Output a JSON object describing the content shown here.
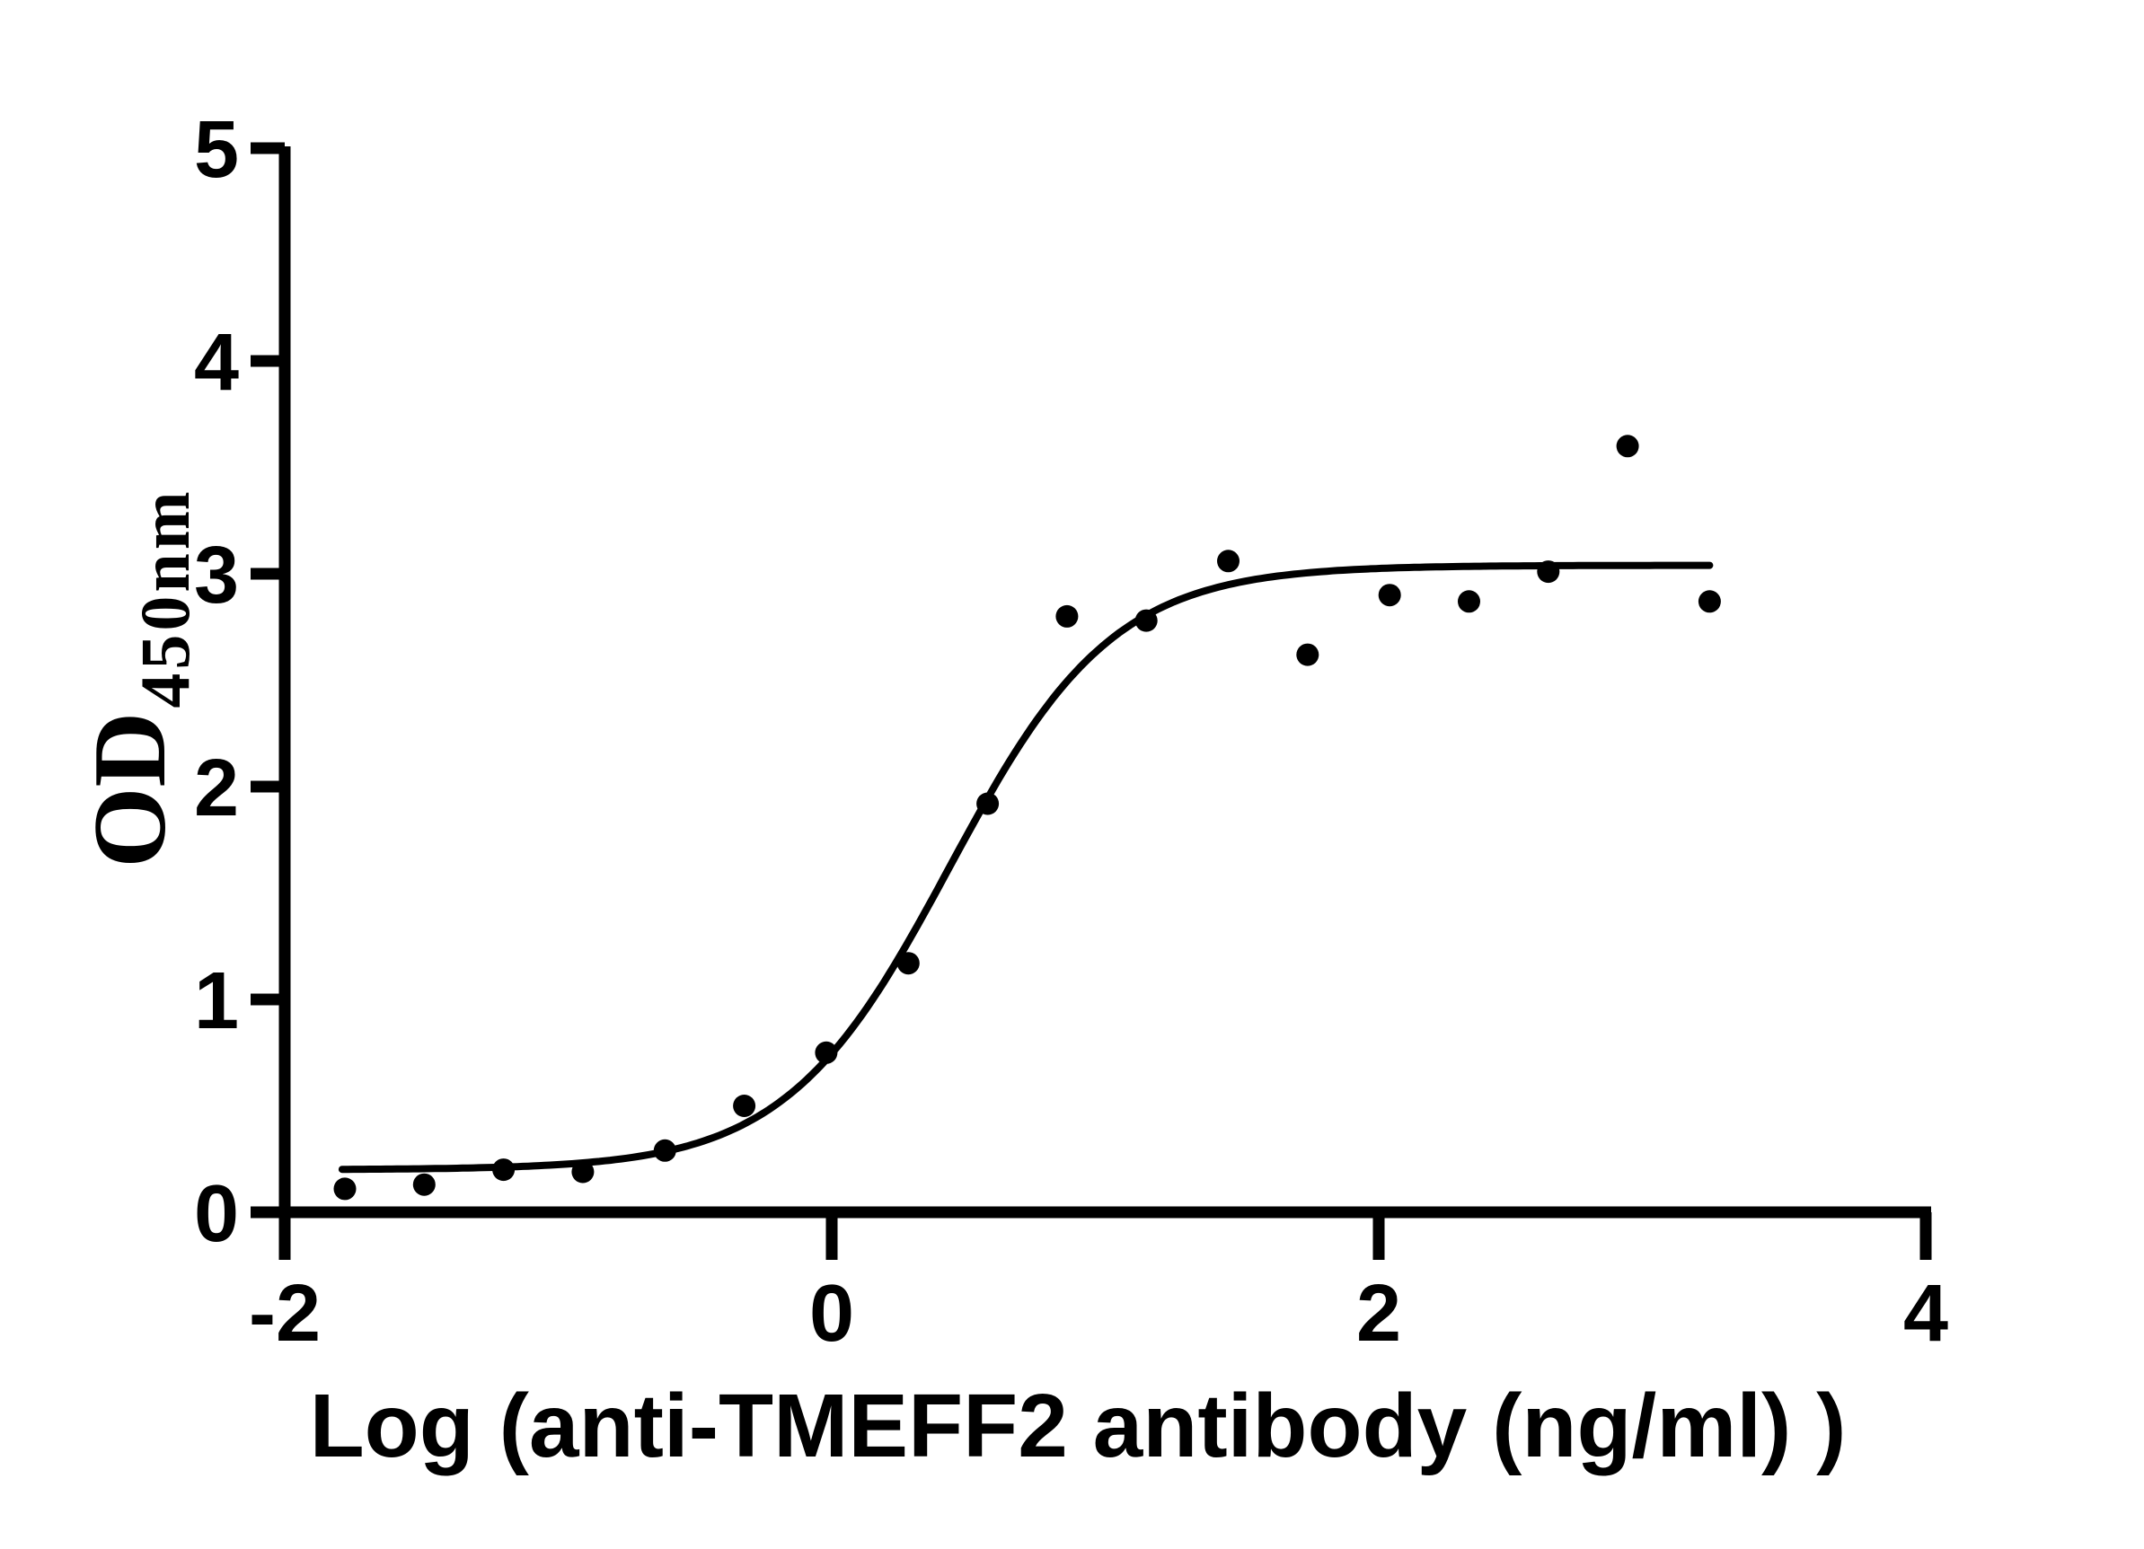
{
  "figure": {
    "background_color": "#ffffff",
    "ink_color": "#000000"
  },
  "chart_data": {
    "type": "scatter",
    "title": "",
    "xlabel": "Log (anti-TMEFF2 antibody (ng/ml) )",
    "ylabel": "OD",
    "ylabel_sub": "450nm",
    "xlim": [
      -2,
      4
    ],
    "ylim": [
      0,
      5
    ],
    "x_ticks": [
      -2,
      0,
      2,
      4
    ],
    "x_tick_labels": [
      "-2",
      "0",
      "2",
      "4"
    ],
    "y_ticks": [
      0,
      1,
      2,
      3,
      4,
      5
    ],
    "y_tick_labels": [
      "0",
      "1",
      "2",
      "3",
      "4",
      "5"
    ],
    "grid": false,
    "legend": null,
    "marker": {
      "shape": "circle",
      "color": "#000000"
    },
    "points": [
      {
        "x": -1.78,
        "y": 0.11
      },
      {
        "x": -1.49,
        "y": 0.13
      },
      {
        "x": -1.2,
        "y": 0.2
      },
      {
        "x": -0.91,
        "y": 0.19
      },
      {
        "x": -0.61,
        "y": 0.29
      },
      {
        "x": -0.32,
        "y": 0.5
      },
      {
        "x": -0.02,
        "y": 0.75
      },
      {
        "x": 0.28,
        "y": 1.17
      },
      {
        "x": 0.57,
        "y": 1.92
      },
      {
        "x": 0.86,
        "y": 2.8
      },
      {
        "x": 1.15,
        "y": 2.78
      },
      {
        "x": 1.45,
        "y": 3.06
      },
      {
        "x": 1.74,
        "y": 2.62
      },
      {
        "x": 2.04,
        "y": 2.9
      },
      {
        "x": 2.33,
        "y": 2.87
      },
      {
        "x": 2.62,
        "y": 3.01
      },
      {
        "x": 2.91,
        "y": 3.6
      },
      {
        "x": 3.21,
        "y": 2.87
      }
    ],
    "fit_curve": {
      "model": "4pl-sigmoid",
      "bottom": 0.2,
      "top": 3.04,
      "log_ec50": 0.43,
      "hill_slope": 1.45,
      "x_range": [
        -1.79,
        3.22
      ]
    }
  }
}
